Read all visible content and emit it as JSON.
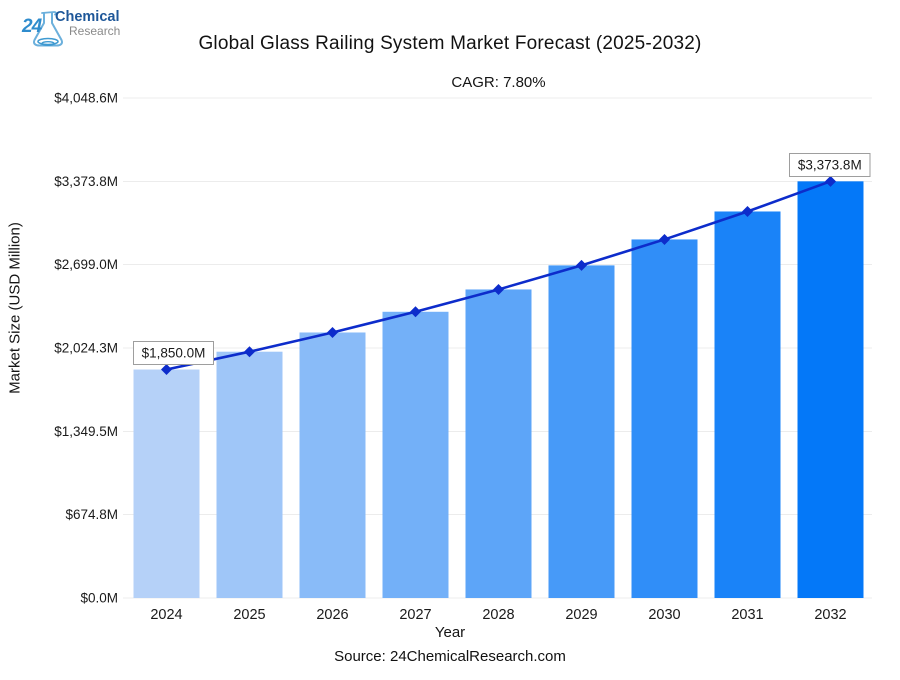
{
  "logo": {
    "number": "24",
    "line1": "Chemical",
    "line2": "Research"
  },
  "header": {
    "title": "Global Glass Railing System Market Forecast (2025-2032)",
    "subtitle": "CAGR: 7.80%"
  },
  "chart_data": {
    "type": "bar",
    "overlay": "line",
    "title": "Global Glass Railing System Market Forecast (2025-2032)",
    "subtitle": "CAGR: 7.80%",
    "categories": [
      "2024",
      "2025",
      "2026",
      "2027",
      "2028",
      "2029",
      "2030",
      "2031",
      "2032"
    ],
    "values": [
      1850.0,
      1994.3,
      2149.9,
      2317.6,
      2498.3,
      2693.2,
      2903.3,
      3129.7,
      3373.8
    ],
    "xlabel": "Year",
    "ylabel": "Market Size (USD Million)",
    "ylim": [
      0,
      4048.6
    ],
    "y_ticks": [
      0.0,
      674.8,
      1349.5,
      2024.3,
      2699.0,
      3373.8,
      4048.6
    ],
    "y_tick_labels": [
      "$0.0M",
      "$674.8M",
      "$1,349.5M",
      "$2,024.3M",
      "$2,699.0M",
      "$3,373.8M",
      "$4,048.6M"
    ],
    "grid": true,
    "legend": "none",
    "bar_colors": [
      "#B5D1F8",
      "#9FC6F8",
      "#89BBF8",
      "#73B0F8",
      "#5DA5F8",
      "#479AF8",
      "#308EF8",
      "#1A83F8",
      "#0478F8"
    ],
    "line_color": "#0D2CCB",
    "gridline_color": "#ECECEC",
    "annotation_border_color": "#9E9E9E",
    "annotations": [
      {
        "category": "2024",
        "index": 0,
        "label": "$1,850.0M"
      },
      {
        "category": "2032",
        "index": 8,
        "label": "$3,373.8M"
      }
    ]
  },
  "footer": {
    "source": "Source: 24ChemicalResearch.com"
  }
}
